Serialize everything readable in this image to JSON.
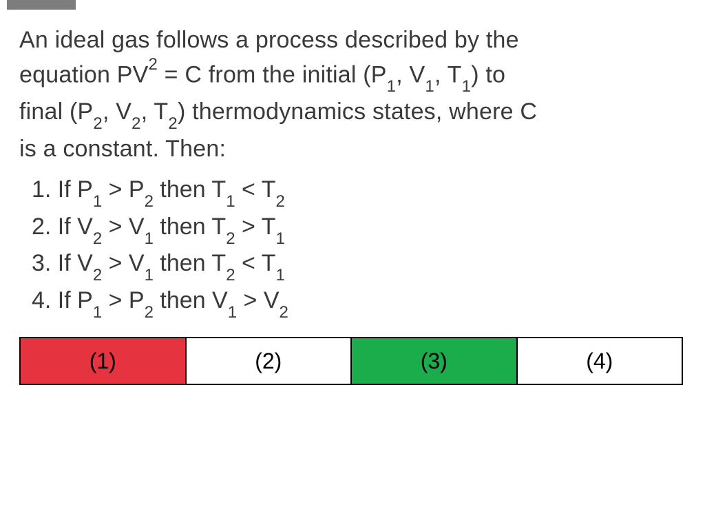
{
  "question": {
    "line1_a": "An ideal gas follows a process described by the",
    "line2_a": "equation PV",
    "sup2": "2",
    "line2_b": " = C from the initial (P",
    "s1a": "1",
    "line2_c": ", V",
    "s1b": "1",
    "line2_d": ", T",
    "s1c": "1",
    "line2_e": ") to",
    "line3_a": "final (P",
    "s2a": "2",
    "line3_b": ", V",
    "s2b": "2",
    "line3_c": ", T",
    "s2c": "2",
    "line3_d": ") thermodynamics states, where C",
    "line4": "is a constant. Then:"
  },
  "opts": {
    "o1_a": "1. If P",
    "o1_s1": "1",
    "o1_b": " > P",
    "o1_s2": "2",
    "o1_c": " then T",
    "o1_s3": "1",
    "o1_d": " < T",
    "o1_s4": "2",
    "o2_a": "2. If V",
    "o2_s1": "2",
    "o2_b": " > V",
    "o2_s2": "1",
    "o2_c": " then T",
    "o2_s3": "2",
    "o2_d": " > T",
    "o2_s4": "1",
    "o3_a": "3. If V",
    "o3_s1": "2",
    "o3_b": " > V",
    "o3_s2": "1",
    "o3_c": " then T",
    "o3_s3": "2",
    "o3_d": " < T",
    "o3_s4": "1",
    "o4_a": "4. If P",
    "o4_s1": "1",
    "o4_b": " > P",
    "o4_s2": "2",
    "o4_c": " then V",
    "o4_s3": "1",
    "o4_d": " > V",
    "o4_s4": "2"
  },
  "answers": {
    "cells": [
      "(1)",
      "(2)",
      "(3)",
      "(4)"
    ],
    "colors": {
      "bg": [
        "#e53340",
        "#ffffff",
        "#1bad4b",
        "#ffffff"
      ],
      "text": [
        "#000000",
        "#000000",
        "#000000",
        "#000000"
      ]
    }
  },
  "style": {
    "top_tab_color": "#7d7d7d",
    "body_text_color": "#3a3a3a",
    "question_fontsize": 34,
    "sub_fontsize": 24,
    "answer_fontsize": 32,
    "answer_row_width": 964,
    "answer_cell_height": 66,
    "border_color": "#000000"
  }
}
